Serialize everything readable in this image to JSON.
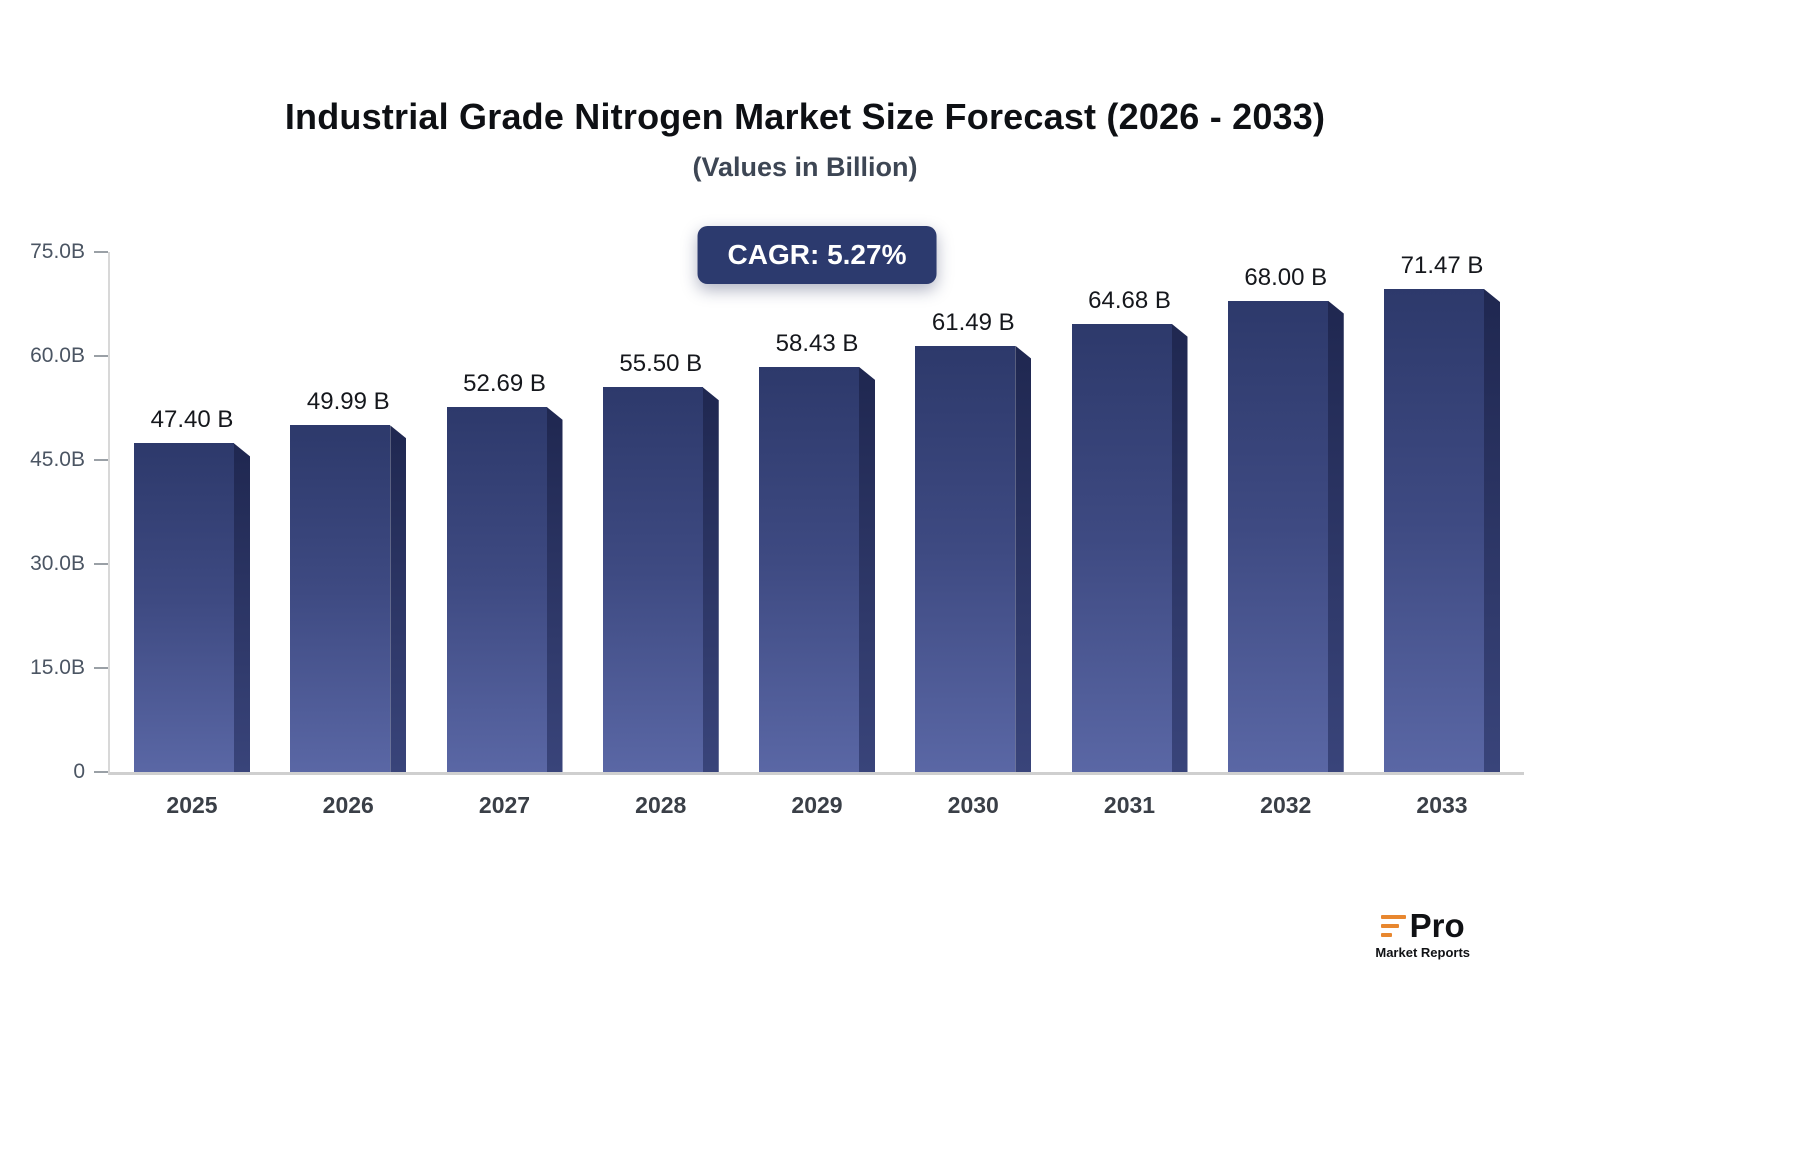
{
  "chart_data": {
    "type": "bar",
    "title": "Industrial Grade Nitrogen Market Size Forecast (2026 - 2033)",
    "subtitle": "(Values in Billion)",
    "annotation": "CAGR: 5.27%",
    "categories": [
      "2025",
      "2026",
      "2027",
      "2028",
      "2029",
      "2030",
      "2031",
      "2032",
      "2033"
    ],
    "values": [
      47.4,
      49.99,
      52.69,
      55.5,
      58.43,
      61.49,
      64.68,
      68.0,
      71.47
    ],
    "value_labels": [
      "47.40 B",
      "49.99 B",
      "52.69 B",
      "55.50 B",
      "58.43 B",
      "61.49 B",
      "64.68 B",
      "68.00 B",
      "71.47 B"
    ],
    "ylim": [
      0,
      75
    ],
    "yticks": [
      75,
      60,
      45,
      30,
      15,
      0
    ],
    "ytick_labels": [
      "75.0B",
      "60.0B",
      "45.0B",
      "30.0B",
      "15.0B",
      "0"
    ],
    "xlabel": "",
    "ylabel": "",
    "legend": "none",
    "grid": false,
    "colors": {
      "bar_gradient_top": "#2d396b",
      "bar_gradient_bottom": "#5a67a5",
      "bar_side": "#1f2750",
      "badge_background": "#2c3a6e",
      "badge_text": "#ffffff"
    }
  },
  "logo": {
    "brand": "Pro",
    "tagline": "Market Reports",
    "icon": "orange-lines-icon",
    "accent_color": "#e8872f"
  }
}
